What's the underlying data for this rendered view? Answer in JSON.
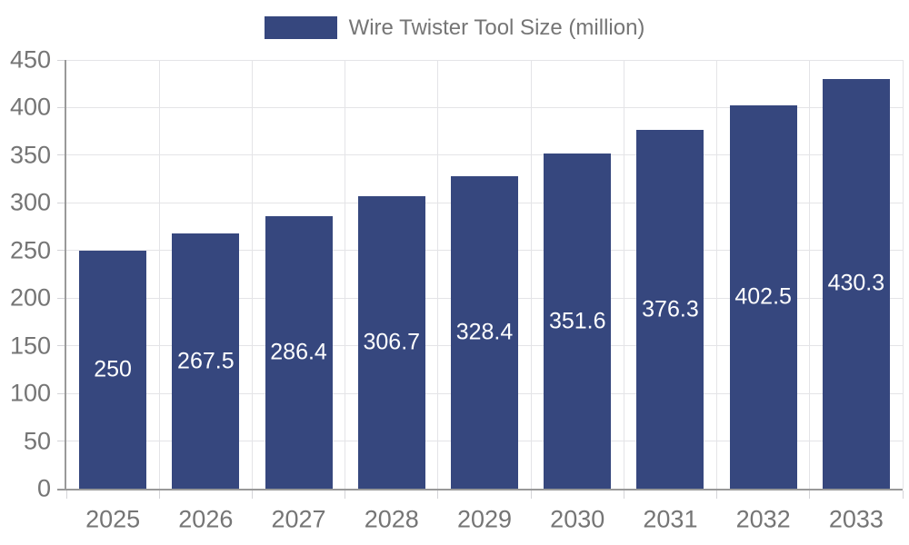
{
  "chart_data": {
    "type": "bar",
    "title": "Wire Twister Tool Size (million)",
    "series_name": "Wire Twister Tool Size (million)",
    "categories": [
      "2025",
      "2026",
      "2027",
      "2028",
      "2029",
      "2030",
      "2031",
      "2032",
      "2033"
    ],
    "values": [
      250,
      267.5,
      286.4,
      306.7,
      328.4,
      351.6,
      376.3,
      402.5,
      430.3
    ],
    "value_labels": [
      "250",
      "267.5",
      "286.4",
      "306.7",
      "328.4",
      "351.6",
      "376.3",
      "402.5",
      "430.3"
    ],
    "xlabel": "",
    "ylabel": "",
    "ylim": [
      0,
      450
    ],
    "yticks": [
      0,
      50,
      100,
      150,
      200,
      250,
      300,
      350,
      400,
      450
    ],
    "grid": true,
    "legend_position": "top-center",
    "colors": {
      "bar": "#36477E",
      "grid_line": "#E4E4E7",
      "axis_line": "#999999",
      "tick_line": "#D4D4D8",
      "tick_label": "#757575",
      "legend_text": "#757575",
      "data_label": "#FFFFFF",
      "background": "#FFFFFF"
    }
  }
}
